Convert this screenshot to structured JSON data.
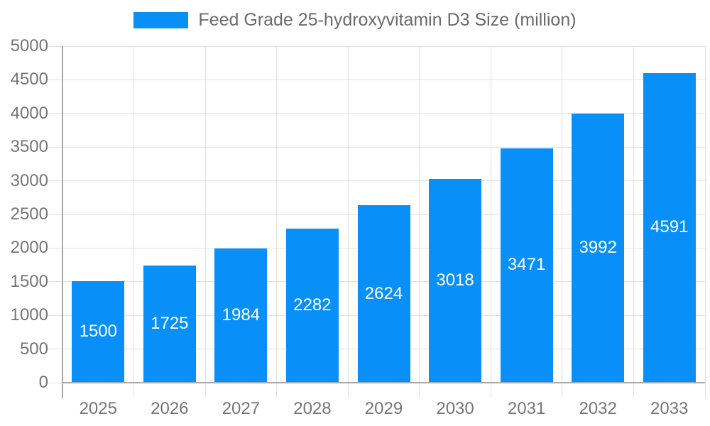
{
  "chart_data": {
    "type": "bar",
    "title": "Feed Grade 25-hydroxyvitamin D3 Size (million)",
    "categories": [
      "2025",
      "2026",
      "2027",
      "2028",
      "2029",
      "2030",
      "2031",
      "2032",
      "2033"
    ],
    "values": [
      1500,
      1725,
      1984,
      2282,
      2624,
      3018,
      3471,
      3992,
      4591
    ],
    "xlabel": "",
    "ylabel": "",
    "ylim": [
      0,
      5000
    ],
    "ytick_interval": 500,
    "grid": true,
    "legend_position": "top-center",
    "value_labels": "inside-center-white",
    "colors": {
      "bar": "#0990f8",
      "bar_value_label": "#ffffff",
      "axis_tick_label": "#757575",
      "title_text": "#6b6b6b",
      "gridline": "#e0e0e0",
      "axis_line": "#a8a8a8",
      "background": "#ffffff"
    }
  }
}
